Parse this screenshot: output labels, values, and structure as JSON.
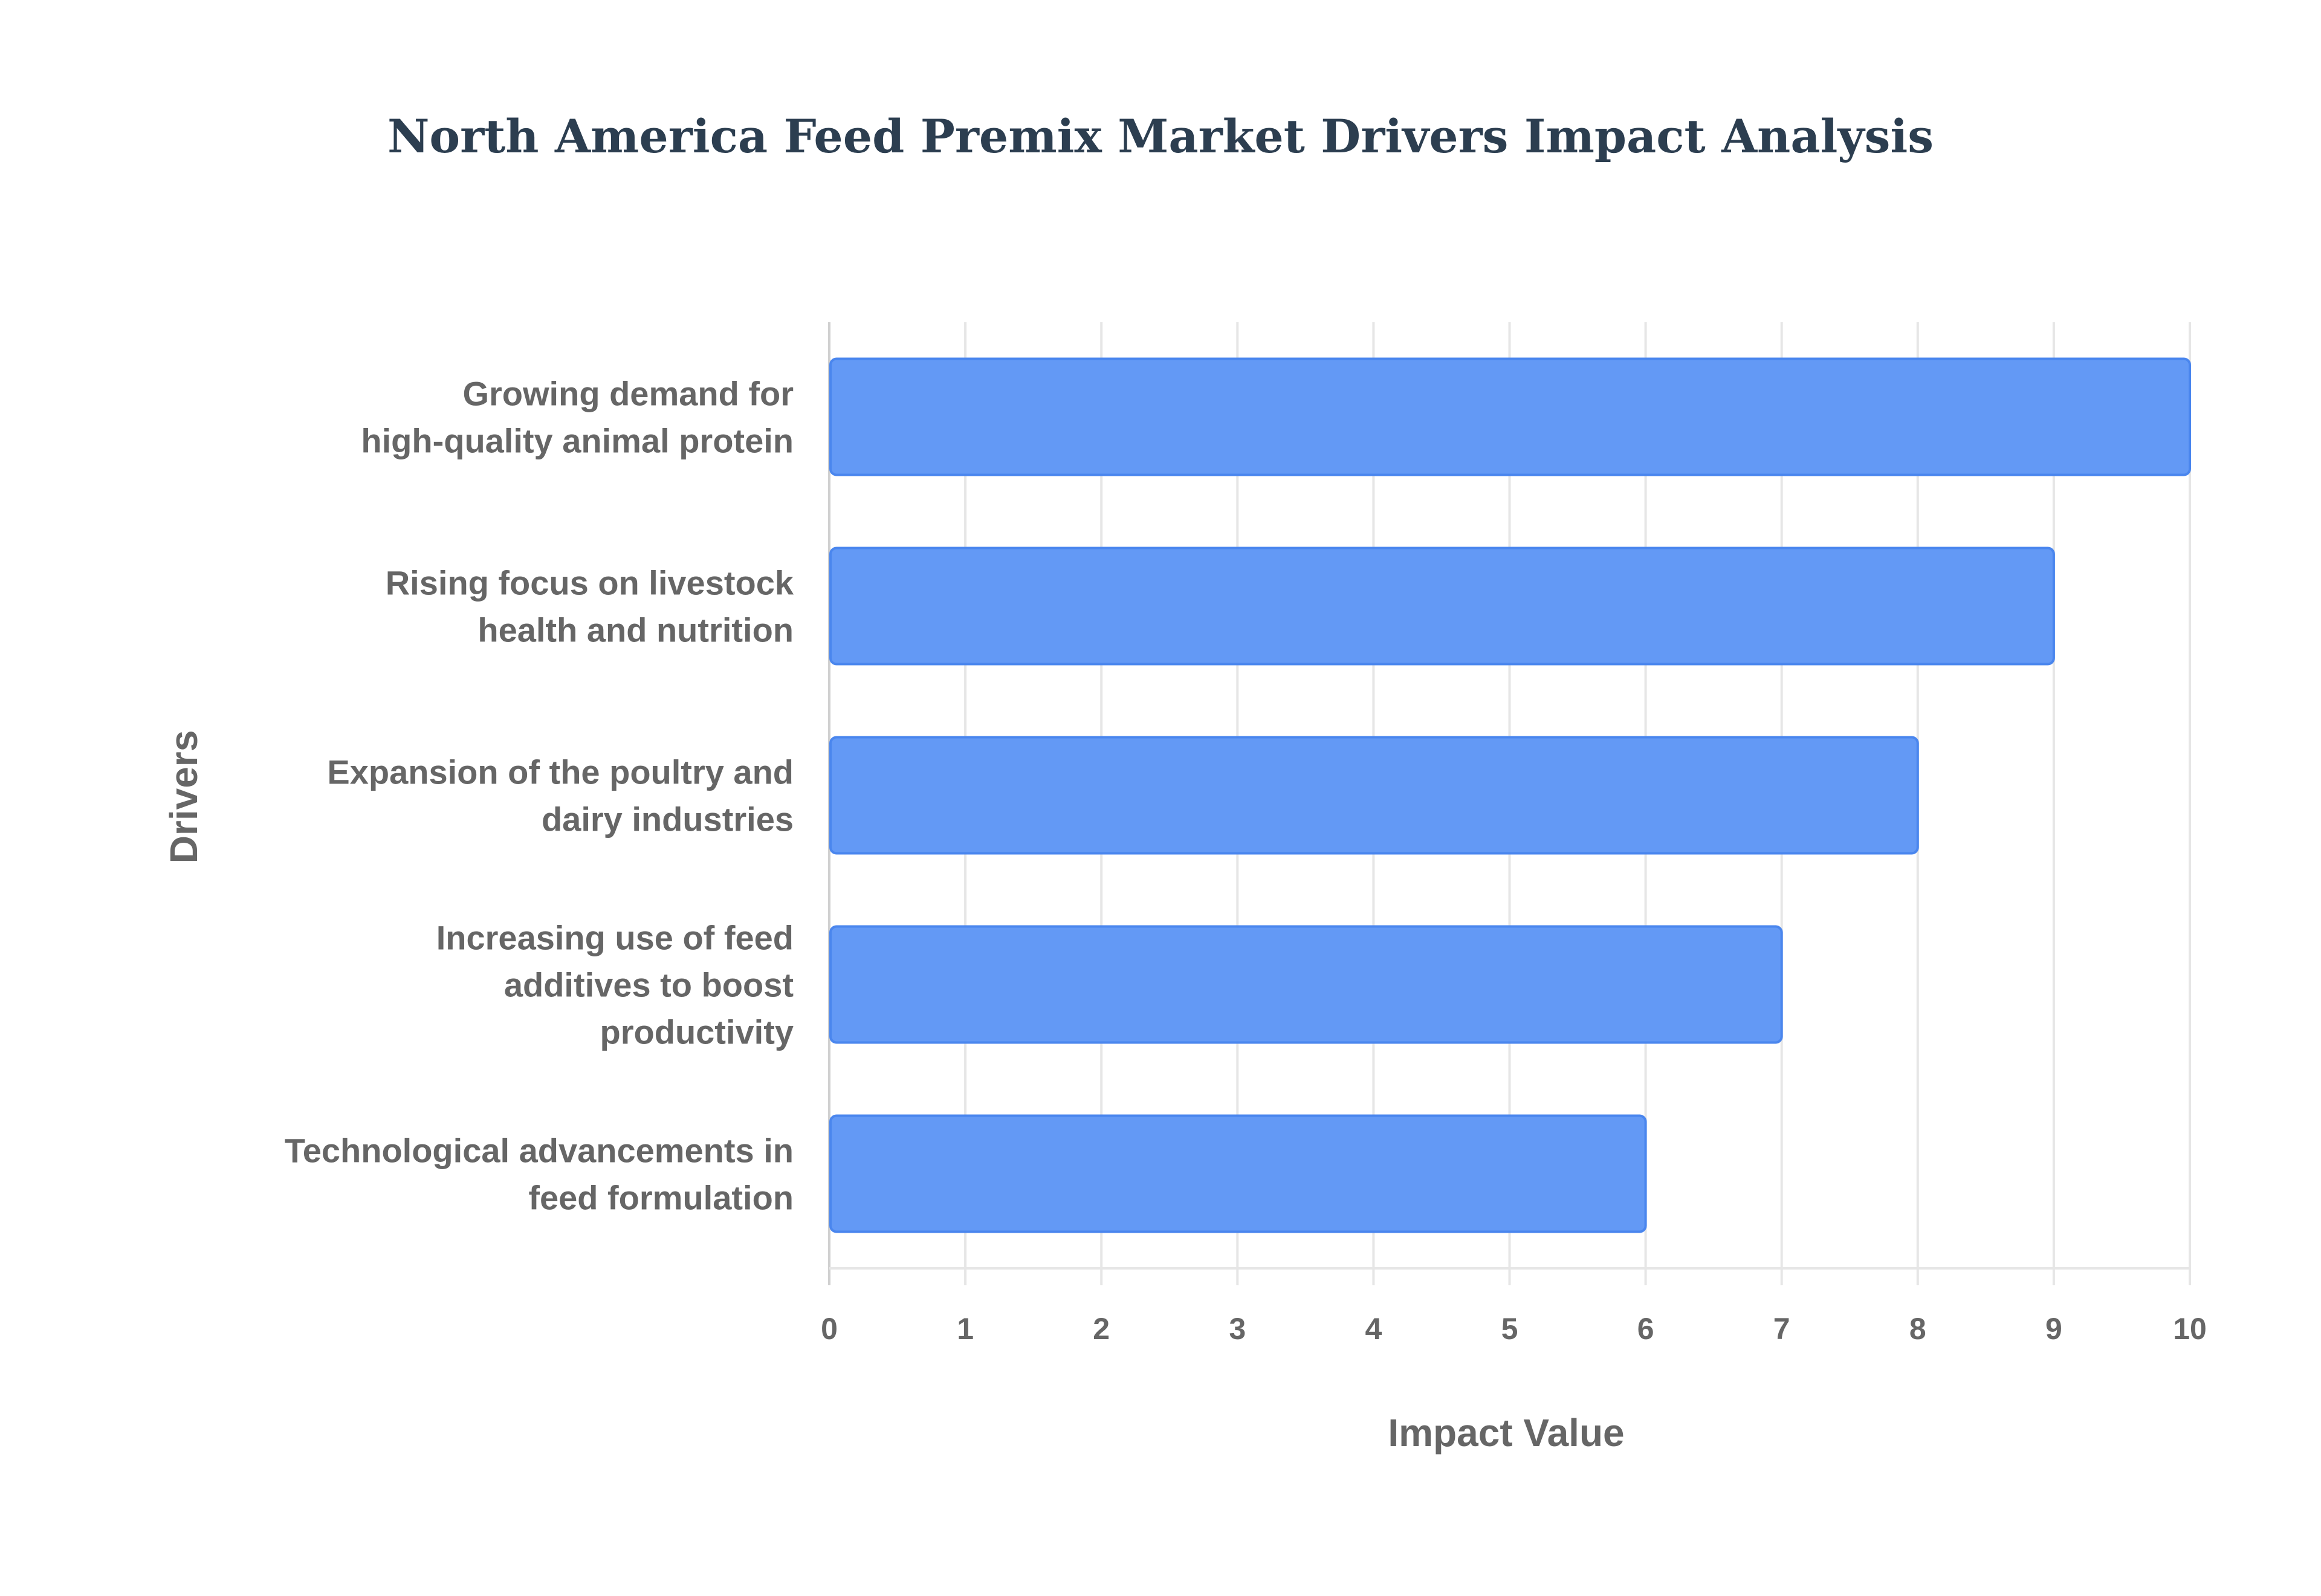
{
  "chart_data": {
    "type": "bar",
    "orientation": "horizontal",
    "title": "North America Feed Premix Market Drivers Impact Analysis",
    "xlabel": "Impact Value",
    "ylabel": "Drivers",
    "xlim": [
      0,
      10
    ],
    "xticks": [
      "0",
      "1",
      "2",
      "3",
      "4",
      "5",
      "6",
      "7",
      "8",
      "9",
      "10"
    ],
    "grid": true,
    "categories": [
      [
        "Growing demand for",
        "high-quality animal protein"
      ],
      [
        "Rising focus on livestock",
        "health and nutrition"
      ],
      [
        "Expansion of the poultry and",
        "dairy industries"
      ],
      [
        "Increasing use of feed",
        "additives to boost",
        "productivity"
      ],
      [
        "Technological advancements in",
        "feed formulation"
      ]
    ],
    "values": [
      10,
      9,
      8,
      7,
      6
    ],
    "colors": {
      "bar": "#6399f5",
      "bar_border": "#4a86ee",
      "grid": "#e6e6e6"
    }
  }
}
